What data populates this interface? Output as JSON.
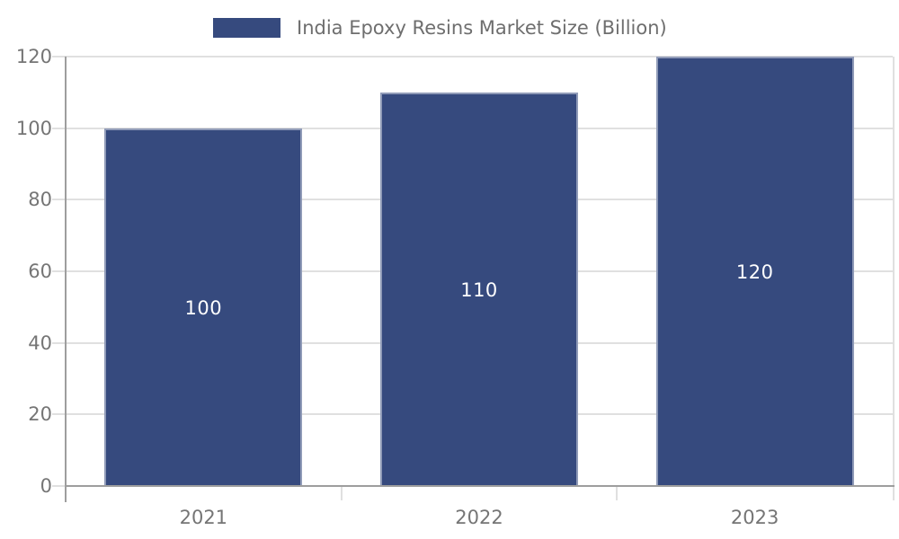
{
  "chart_data": {
    "type": "bar",
    "title": "India Epoxy Resins Market Size (Billion)",
    "categories": [
      "2021",
      "2022",
      "2023"
    ],
    "values": [
      100,
      110,
      120
    ],
    "bar_labels": [
      "100",
      "110",
      "120"
    ],
    "xlabel": "",
    "ylabel": "",
    "ylim": [
      0,
      120
    ],
    "yticks": [
      0,
      20,
      40,
      60,
      80,
      100,
      120
    ],
    "grid": true,
    "legend_position": "top-center",
    "bar_label_position": "center-inside",
    "colors": {
      "bar": "#364a7e",
      "bar_value_label": "#ffffff",
      "grid": "#e0e0e0",
      "axis": "#9e9e9e",
      "tick_label": "#757575",
      "legend_text": "#6e6e6e",
      "background": "#ffffff"
    }
  }
}
